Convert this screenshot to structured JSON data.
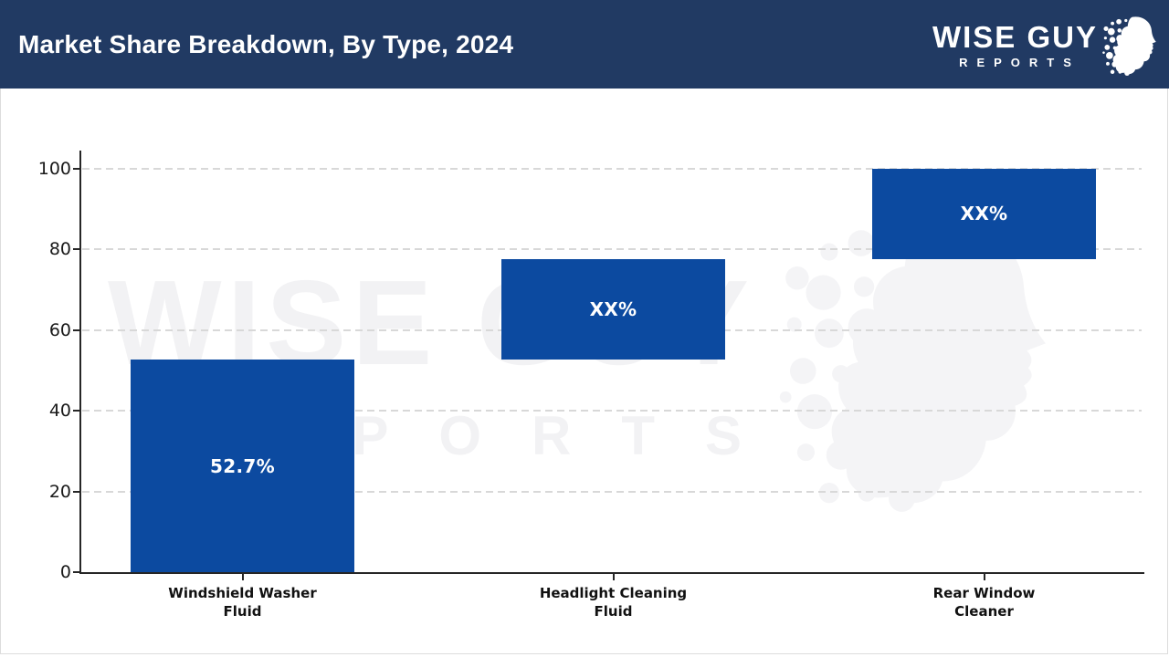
{
  "header": {
    "title": "Market Share Breakdown, By Type, 2024",
    "logo": {
      "line1": "WISE GUY",
      "line2": "REPORTS"
    }
  },
  "watermark": {
    "line1": "WISE GUY",
    "line2": "REPORTS"
  },
  "chart_data": {
    "type": "bar",
    "subtype": "floating-segment-bars",
    "title": "Market Share Breakdown, By Type, 2024",
    "categories": [
      [
        "Windshield Washer",
        "Fluid"
      ],
      [
        "Headlight Cleaning",
        "Fluid"
      ],
      [
        "Rear Window",
        "Cleaner"
      ]
    ],
    "series": [
      {
        "name": "Market Share %",
        "segments": [
          {
            "start": 0,
            "end": 52.7,
            "label": "52.7%"
          },
          {
            "start": 52.7,
            "end": 77.7,
            "label": "XX%"
          },
          {
            "start": 77.7,
            "end": 100,
            "label": "XX%"
          }
        ]
      }
    ],
    "ylim": [
      0,
      100
    ],
    "yticks": [
      0,
      20,
      40,
      60,
      80,
      100
    ],
    "xlabel": "",
    "ylabel": "",
    "grid": "horizontal-dashed",
    "legend": "none",
    "bar_color": "#0C4AA0",
    "bar_label_color": "#FFFFFF"
  },
  "colors": {
    "header_bg": "#213A63",
    "bar": "#0C4AA0",
    "grid": "#D8D8D8",
    "axis": "#262626",
    "watermark": "#F2F2F4",
    "tick_label": "#1A1A1A"
  }
}
